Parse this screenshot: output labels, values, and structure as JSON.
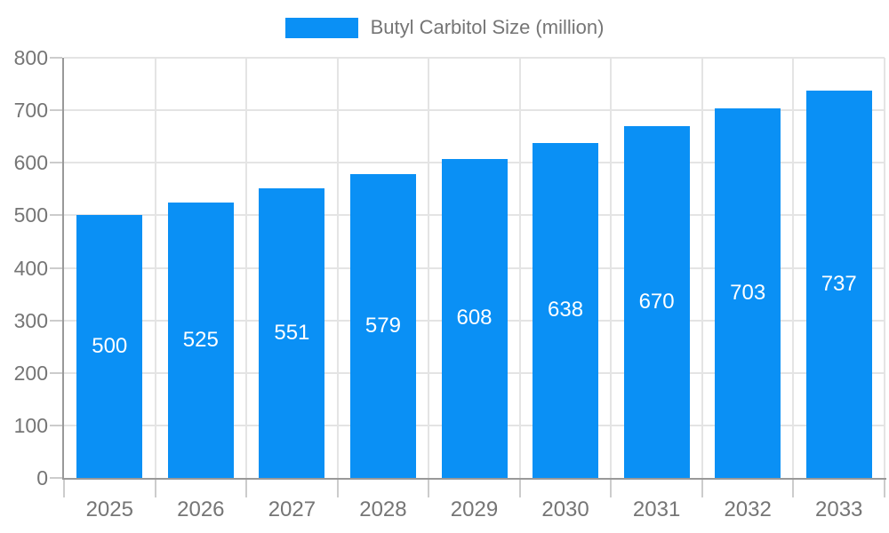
{
  "legend": {
    "label": "Butyl Carbitol Size (million)"
  },
  "colors": {
    "bar": "#0a90f5",
    "axis": "#999999",
    "grid": "#e4e4e4",
    "tick": "#cccccc",
    "label": "#757575",
    "bar_label": "#ffffff",
    "background": "#ffffff"
  },
  "chart_data": {
    "type": "bar",
    "title": "Butyl Carbitol Size (million)",
    "series": [
      {
        "name": "Butyl Carbitol Size (million)",
        "values": [
          500,
          525,
          551,
          579,
          608,
          638,
          670,
          703,
          737
        ]
      }
    ],
    "categories": [
      "2025",
      "2026",
      "2027",
      "2028",
      "2029",
      "2030",
      "2031",
      "2032",
      "2033"
    ],
    "bar_value_labels": [
      "500",
      "525",
      "551",
      "579",
      "608",
      "638",
      "670",
      "703",
      "737"
    ],
    "xlabel": "",
    "ylabel": "",
    "ylim": [
      0,
      800
    ],
    "ytick_interval": 100,
    "ytick_labels": [
      "0",
      "100",
      "200",
      "300",
      "400",
      "500",
      "600",
      "700",
      "800"
    ],
    "grid": true,
    "legend_position": "top",
    "value_label_position": "inside-center"
  }
}
